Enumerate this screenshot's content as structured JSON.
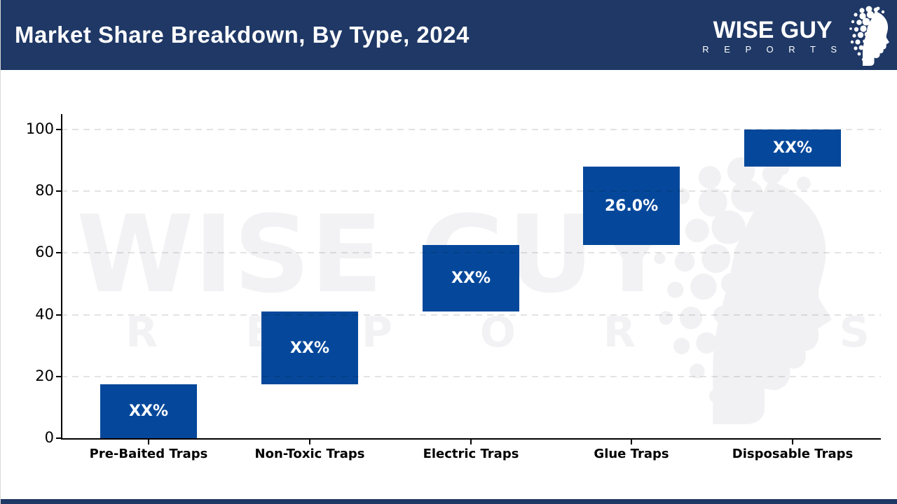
{
  "header": {
    "title": "Market Share Breakdown, By Type, 2024",
    "logo": {
      "name": "WISE GUY",
      "subname": "R E P O R T S"
    }
  },
  "watermark": {
    "line1": "WISE GUY",
    "line2": "R E P O R T S"
  },
  "colors": {
    "header_bg": "#1f3866",
    "footer_bg": "#1f3866",
    "bar": "#05489b",
    "axis": "#000000",
    "gridline": "rgba(0,0,0,0.11)",
    "bar_label_text": "#ffffff",
    "watermark": "#f2f2f4"
  },
  "chart_data": {
    "type": "bar",
    "subtype": "waterfall",
    "title": "Market Share Breakdown, By Type, 2024",
    "xlabel": "",
    "ylabel": "",
    "ylim": [
      0,
      105
    ],
    "yticks": [
      0,
      20,
      40,
      60,
      80,
      100
    ],
    "grid": "horizontal dashed, drawn over bars",
    "legend": "none",
    "categories": [
      "Pre-Baited Traps",
      "Non-Toxic Traps",
      "Electric Traps",
      "Glue Traps",
      "Disposable Traps"
    ],
    "segments": [
      {
        "category": "Pre-Baited Traps",
        "start": 0,
        "end": 17.5,
        "value": 17.5,
        "label": "XX%"
      },
      {
        "category": "Non-Toxic Traps",
        "start": 17.5,
        "end": 41,
        "value": 23.5,
        "label": "XX%"
      },
      {
        "category": "Electric Traps",
        "start": 41,
        "end": 62.5,
        "value": 21.5,
        "label": "XX%"
      },
      {
        "category": "Glue Traps",
        "start": 62.5,
        "end": 88,
        "value": 26.0,
        "label": "26.0%"
      },
      {
        "category": "Disposable Traps",
        "start": 88,
        "end": 100,
        "value": 12.0,
        "label": "XX%"
      }
    ]
  }
}
